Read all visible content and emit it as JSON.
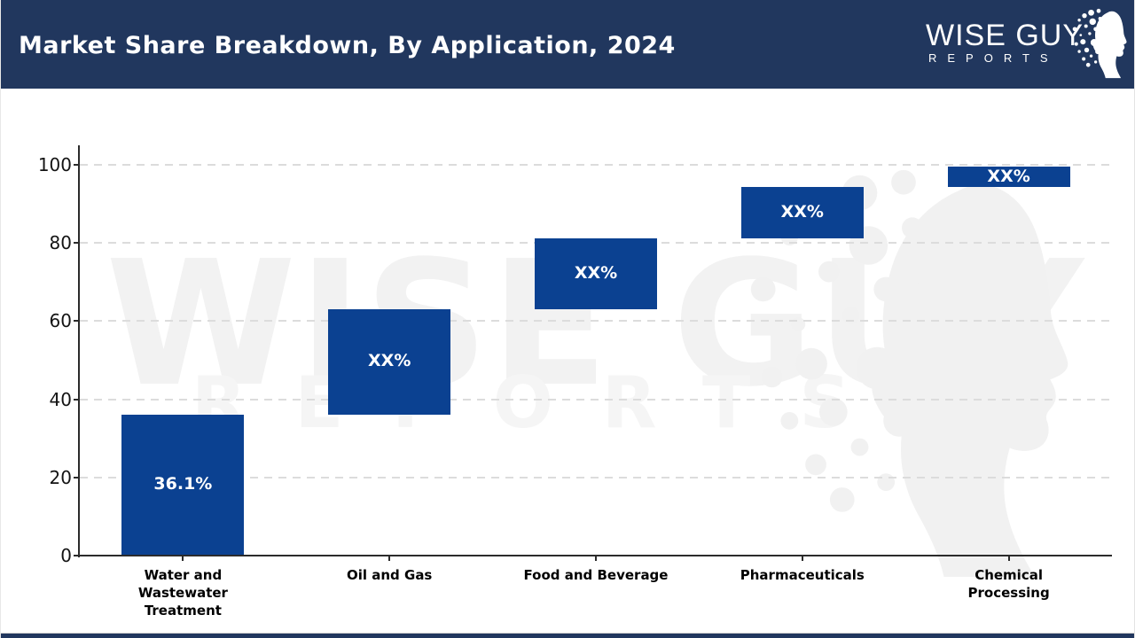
{
  "header": {
    "title": "Market Share Breakdown, By Application, 2024",
    "logo": {
      "name": "WISE GUY",
      "tagline": "REPORTS"
    }
  },
  "watermark": {
    "name": "WISE GUY",
    "tagline": "REPORTS"
  },
  "chart_data": {
    "type": "bar",
    "subtype": "waterfall",
    "title": "Market Share Breakdown, By Application, 2024",
    "unit": "%",
    "categories": [
      "Water and\nWastewater\nTreatment",
      "Oil and Gas",
      "Food and Beverage",
      "Pharmaceuticals",
      "Chemical\nProcessing"
    ],
    "bars": [
      {
        "category": "Water and\nWastewater\nTreatment",
        "label": "36.1%",
        "start": 0,
        "end": 36.1
      },
      {
        "category": "Oil and Gas",
        "label": "XX%",
        "start": 36.1,
        "end": 63.0
      },
      {
        "category": "Food and Beverage",
        "label": "XX%",
        "start": 63.0,
        "end": 81.2
      },
      {
        "category": "Pharmaceuticals",
        "label": "XX%",
        "start": 81.2,
        "end": 94.3
      },
      {
        "category": "Chemical\nProcessing",
        "label": "XX%",
        "start": 94.3,
        "end": 99.5
      }
    ],
    "yticks": [
      0,
      20,
      40,
      60,
      80,
      100
    ],
    "ylim": [
      0,
      105
    ],
    "grid": {
      "horizontal": true,
      "style": "dashed",
      "color": "#DCDCDC"
    },
    "legend": "none",
    "colors": {
      "bar": "#0B4191",
      "bar_label": "#FFFFFF",
      "axis": "#2B2B2B",
      "tick_label": "#141414",
      "header_bg": "#21375E",
      "watermark": "#F2F2F2"
    }
  }
}
